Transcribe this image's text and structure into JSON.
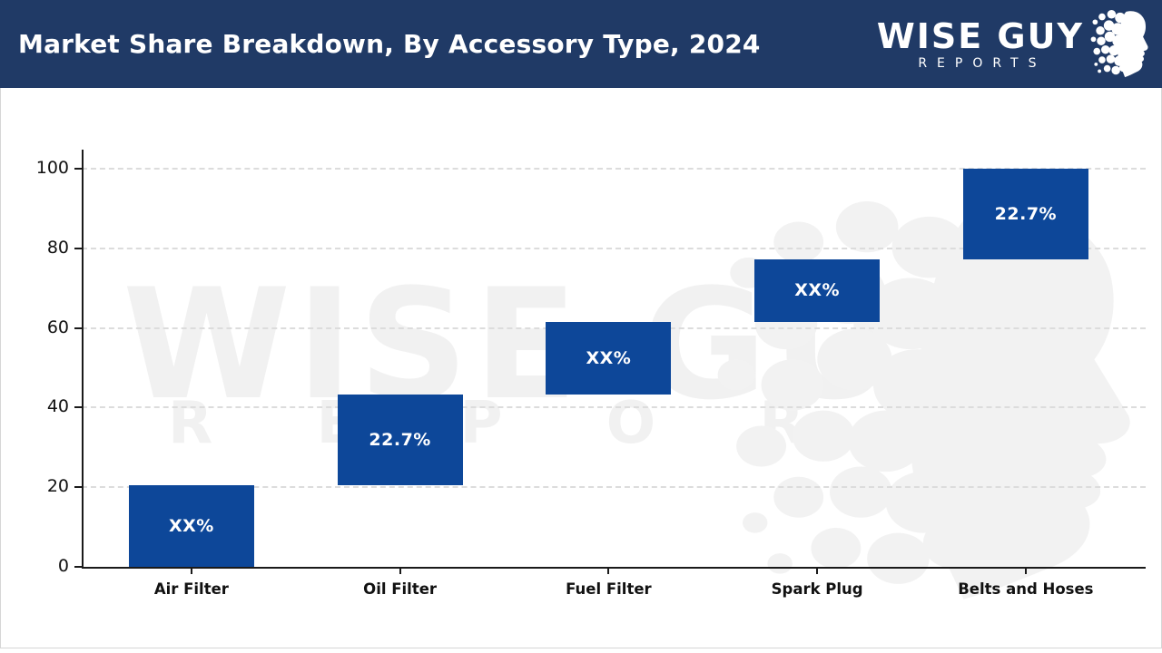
{
  "header": {
    "title": "Market Share Breakdown, By Accessory Type, 2024",
    "bg_color": "#203a66",
    "logo": {
      "word": "WISE GUY",
      "sub": "REPORTS"
    }
  },
  "watermark": {
    "line1": "WISE GUY",
    "line2": "R E P O R T S"
  },
  "chart_data": {
    "type": "bar",
    "subtype": "floating-waterfall",
    "title": "Market Share Breakdown, By Accessory Type, 2024",
    "categories": [
      "Air Filter",
      "Oil Filter",
      "Fuel Filter",
      "Spark Plug",
      "Belts and Hoses"
    ],
    "series": [
      {
        "name": "Market Share (%)",
        "segments": [
          {
            "category": "Air Filter",
            "start": 0,
            "end": 20.6,
            "label": "XX%"
          },
          {
            "category": "Oil Filter",
            "start": 20.6,
            "end": 43.3,
            "label": "22.7%"
          },
          {
            "category": "Fuel Filter",
            "start": 43.3,
            "end": 61.5,
            "label": "XX%"
          },
          {
            "category": "Spark Plug",
            "start": 61.5,
            "end": 77.3,
            "label": "XX%"
          },
          {
            "category": "Belts and Hoses",
            "start": 77.3,
            "end": 100,
            "label": "22.7%"
          }
        ]
      }
    ],
    "xlabel": "",
    "ylabel": "",
    "ylim": [
      0,
      104.8
    ],
    "yticks": [
      0,
      20,
      40,
      60,
      80,
      100
    ],
    "grid": true,
    "gridline_style": "dashed",
    "legend": "none",
    "bar_color": "#0d4799",
    "value_label_color": "#ffffff",
    "axis_color": "#1a1a1a"
  }
}
